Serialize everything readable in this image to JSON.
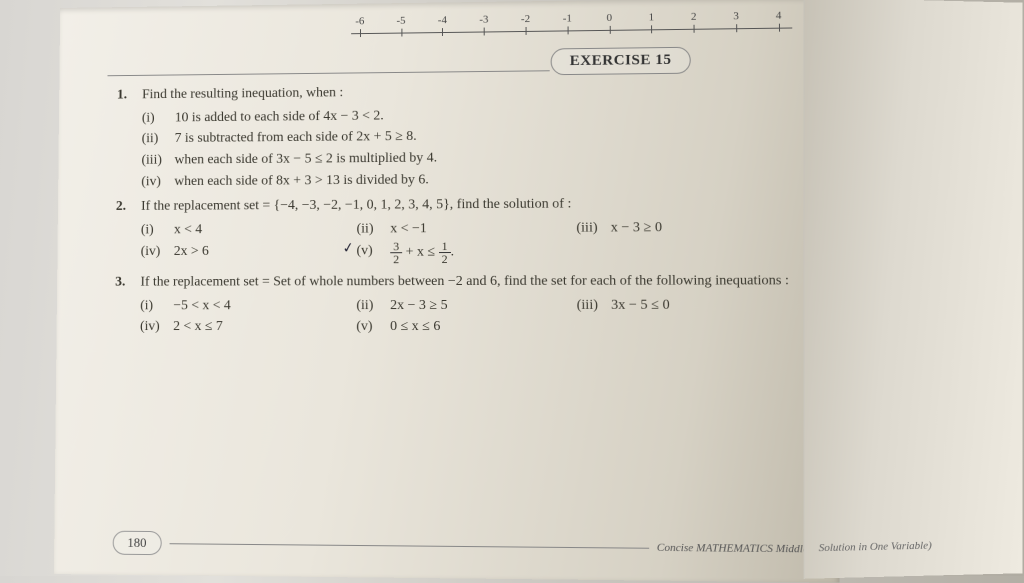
{
  "numberline": {
    "ticks": [
      -6,
      -5,
      -4,
      -3,
      -2,
      -1,
      0,
      1,
      2,
      3,
      4
    ],
    "start_pct": 2,
    "step_pct": 9.5
  },
  "badge": "EXERCISE 15",
  "q1": {
    "num": "1.",
    "stem": "Find the resulting inequation, when :",
    "i": {
      "n": "(i)",
      "t": "10 is added to each side of 4x − 3 < 2."
    },
    "ii": {
      "n": "(ii)",
      "t": "7 is subtracted from each side of 2x + 5 ≥ 8."
    },
    "iii": {
      "n": "(iii)",
      "t": "when each side of 3x − 5 ≤ 2 is multiplied by 4."
    },
    "iv": {
      "n": "(iv)",
      "t": "when each side of 8x + 3 > 13 is divided by 6."
    }
  },
  "q2": {
    "num": "2.",
    "stem": "If the replacement set = {−4, −3, −2, −1, 0, 1, 2, 3, 4, 5}, find the solution of :",
    "i": {
      "n": "(i)",
      "t": "x < 4"
    },
    "ii": {
      "n": "(ii)",
      "t": "x < −1"
    },
    "iii": {
      "n": "(iii)",
      "t": "x − 3 ≥ 0"
    },
    "iv": {
      "n": "(iv)",
      "t": "2x > 6"
    },
    "v": {
      "n": "(v)",
      "pre": "",
      "f1n": "3",
      "f1d": "2",
      "mid": " + x ≤ ",
      "f2n": "1",
      "f2d": "2",
      "post": "."
    }
  },
  "q3": {
    "num": "3.",
    "stem": "If the replacement set = Set of whole numbers between −2 and 6, find the set for each of the following inequations :",
    "i": {
      "n": "(i)",
      "t": "−5 < x < 4"
    },
    "ii": {
      "n": "(ii)",
      "t": "2x − 3 ≥ 5"
    },
    "iii": {
      "n": "(iii)",
      "t": "3x − 5 ≤ 0"
    },
    "iv": {
      "n": "(iv)",
      "t": "2 < x ≤ 7"
    },
    "v": {
      "n": "(v)",
      "t": "0 ≤ x ≤ 6"
    }
  },
  "footer": {
    "page": "180",
    "left": "Concise MATHEMATICS Middle",
    "right": "Solution in One Variable)"
  }
}
